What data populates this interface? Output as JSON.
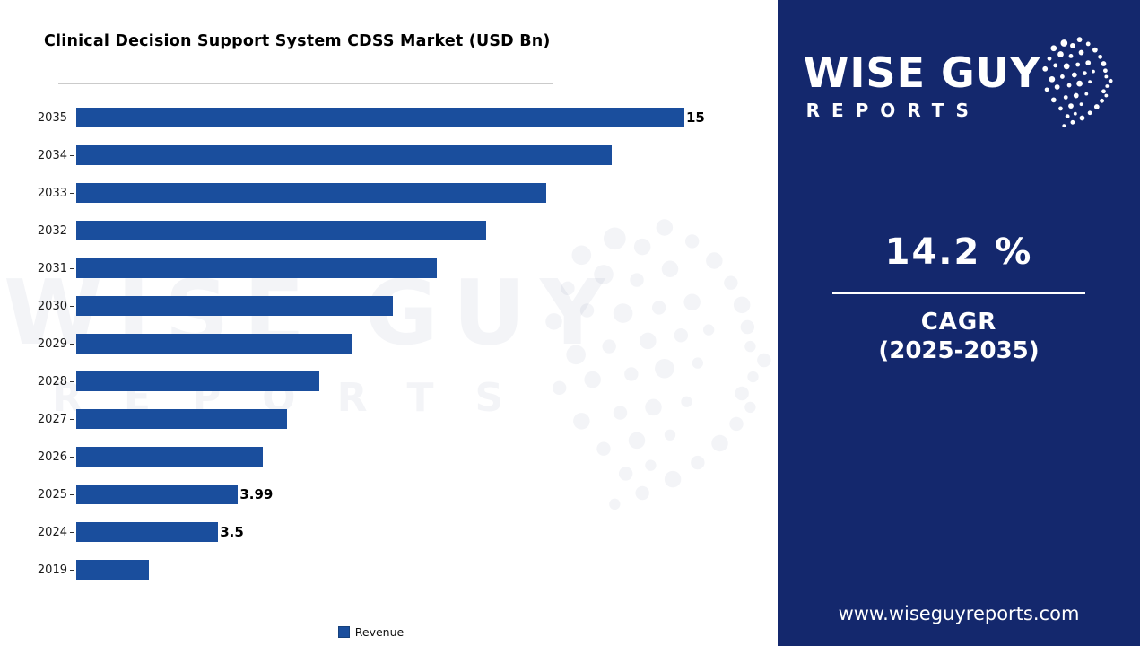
{
  "chart_data": {
    "type": "bar",
    "orientation": "horizontal",
    "title": "Clinical Decision Support System CDSS Market (USD Bn)",
    "legend_label": "Revenue",
    "legend_position": "bottom",
    "categories": [
      "2035",
      "2034",
      "2033",
      "2032",
      "2031",
      "2030",
      "2029",
      "2028",
      "2027",
      "2026",
      "2025",
      "2024",
      "2019"
    ],
    "values": [
      15,
      13.2,
      11.6,
      10.1,
      8.9,
      7.8,
      6.8,
      6.0,
      5.2,
      4.6,
      3.99,
      3.5,
      1.8
    ],
    "bar_labels": [
      "15",
      "",
      "",
      "",
      "",
      "",
      "",
      "",
      "",
      "",
      "3.99",
      "3.5",
      ""
    ],
    "xlim": [
      0,
      15
    ],
    "grid": false,
    "bar_color": "#1a4e9d"
  },
  "watermark": {
    "line1": "WISE GUY",
    "line2": "REPORTS"
  },
  "panel": {
    "logo_line1": "WISE GUY",
    "logo_line2": "REPORTS",
    "cagr_value": "14.2 %",
    "cagr_label": "CAGR",
    "cagr_range": "(2025-2035)",
    "website": "www.wiseguyreports.com",
    "bg_color": "#14286d"
  }
}
